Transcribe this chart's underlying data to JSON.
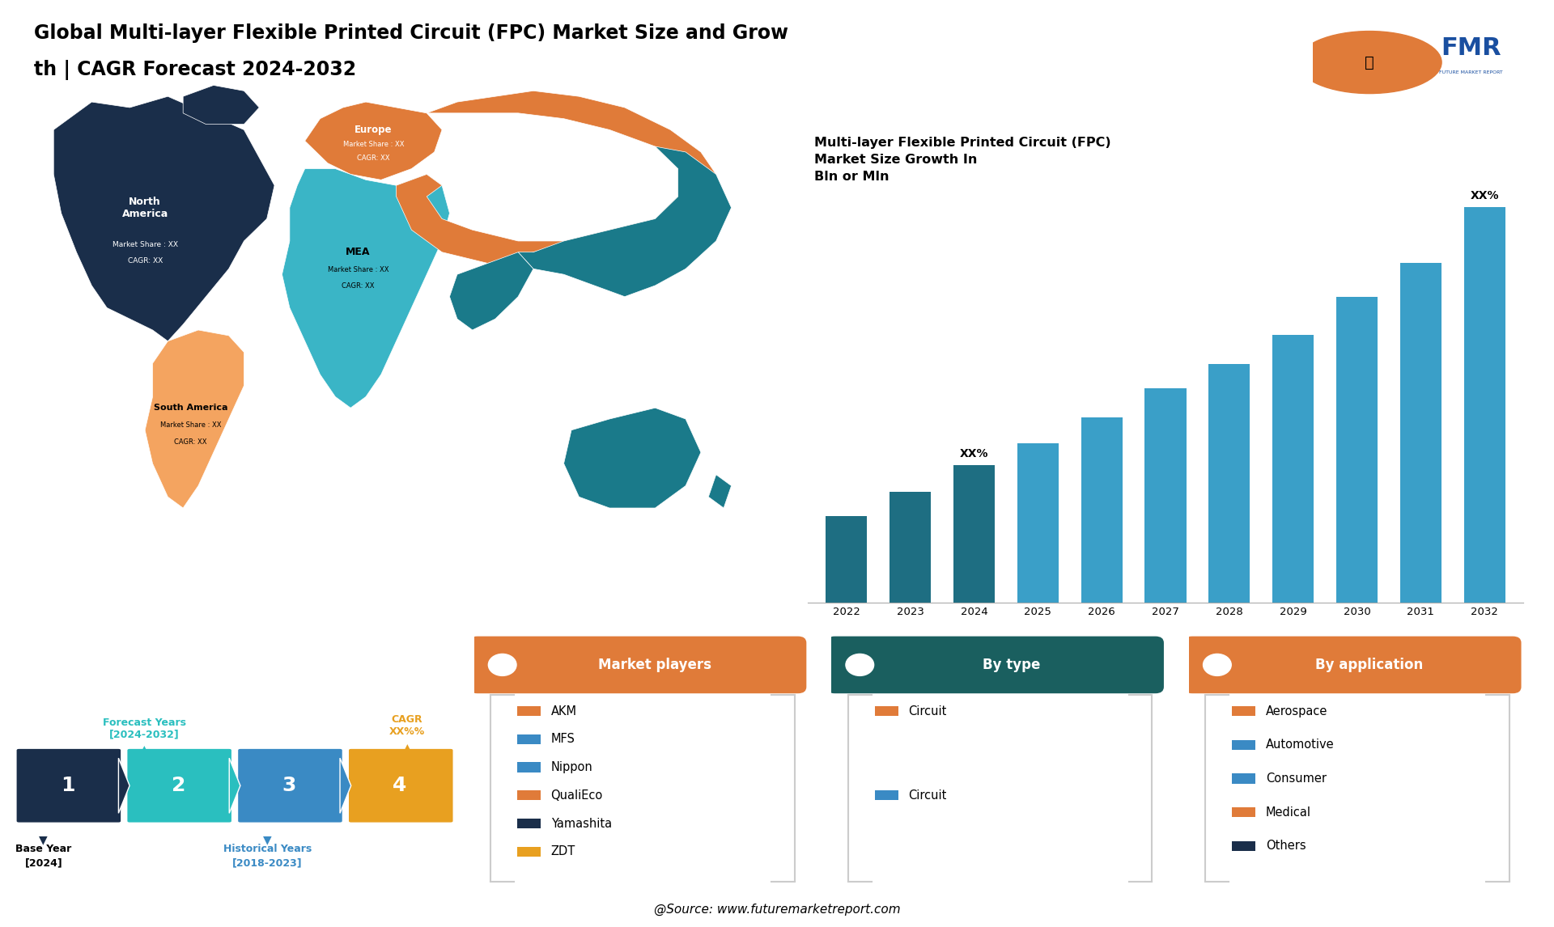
{
  "title_line1": "Global Multi-layer Flexible Printed Circuit (FPC) Market Size and Grow",
  "title_line2": "th | CAGR Forecast 2024-2032",
  "bg_color": "#ffffff",
  "bar_title": "Multi-layer Flexible Printed Circuit (FPC)\nMarket Size Growth In\nBln or Mln",
  "bar_years": [
    "2022",
    "2023",
    "2024",
    "2025",
    "2026",
    "2027",
    "2028",
    "2029",
    "2030",
    "2031",
    "2032"
  ],
  "bar_values": [
    1.8,
    2.3,
    2.85,
    3.3,
    3.85,
    4.45,
    4.95,
    5.55,
    6.35,
    7.05,
    8.2
  ],
  "bar_color_light": "#3a9fc8",
  "bar_color_dark": "#1e6e82",
  "bar_annotation_idx1": 2,
  "bar_annotation_idx2": 10,
  "bar_annotation_text": "XX%",
  "na_color": "#1a2e4a",
  "sa_color": "#f4a460",
  "eu_color": "#e07b39",
  "mea_color": "#3ab5c6",
  "ap_color": "#1a7a8a",
  "market_players_header": "Market players",
  "market_players_header_color": "#e07b39",
  "market_players": [
    "AKM",
    "MFS",
    "Nippon",
    "QualiEco",
    "Yamashita",
    "ZDT"
  ],
  "mp_bullet_colors": [
    "#e07b39",
    "#3a8ac4",
    "#3a8ac4",
    "#e07b39",
    "#1a2e4a",
    "#e8a020"
  ],
  "by_type_header": "By type",
  "by_type_header_color": "#1a5f5f",
  "by_type": [
    "Circuit",
    "Circuit"
  ],
  "bt_bullet_colors": [
    "#e07b39",
    "#3a8ac4"
  ],
  "by_application_header": "By application",
  "by_application_header_color": "#e07b39",
  "by_application": [
    "Aerospace",
    "Automotive",
    "Consumer",
    "Medical",
    "Others"
  ],
  "ba_bullet_colors": [
    "#e07b39",
    "#3a8ac4",
    "#3a8ac4",
    "#e07b39",
    "#1a2e4a"
  ],
  "source_text": "@Source: www.futuremarketreport.com",
  "seg_colors": [
    "#1a2e4a",
    "#2abfbf",
    "#3a8ac4",
    "#e8a020"
  ],
  "seg_nums": [
    "1",
    "2",
    "3",
    "4"
  ],
  "forecast_color": "#2abfbf",
  "historical_color": "#3a8ac4",
  "cagr_color": "#e8a020",
  "base_year_color": "#1a2e4a"
}
